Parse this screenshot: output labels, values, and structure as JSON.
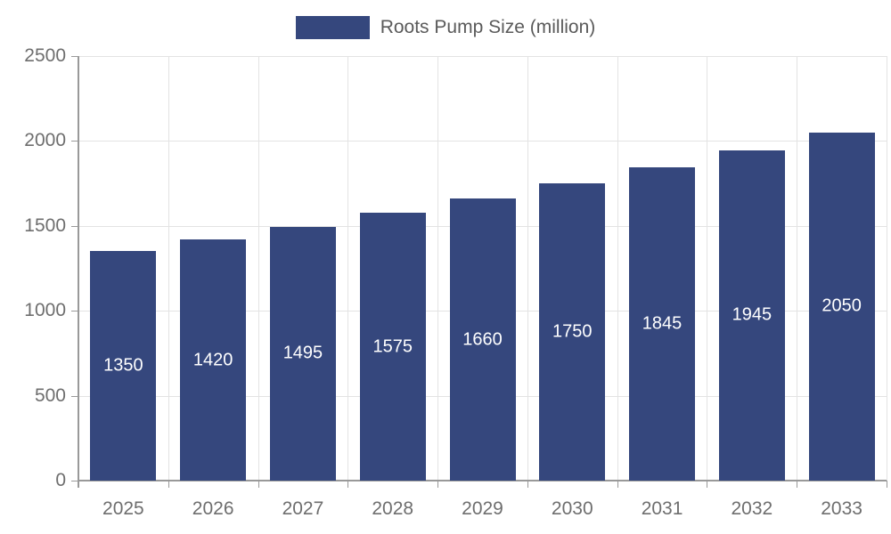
{
  "chart_data": {
    "type": "bar",
    "title": "",
    "legend": {
      "label": "Roots Pump Size (million)",
      "position": "top-center"
    },
    "categories": [
      "2025",
      "2026",
      "2027",
      "2028",
      "2029",
      "2030",
      "2031",
      "2032",
      "2033"
    ],
    "series": [
      {
        "name": "Roots Pump Size (million)",
        "values": [
          1350,
          1420,
          1495,
          1575,
          1660,
          1750,
          1845,
          1945,
          2050
        ]
      }
    ],
    "data_labels": [
      "1350",
      "1420",
      "1495",
      "1575",
      "1660",
      "1750",
      "1845",
      "1945",
      "2050"
    ],
    "xlabel": "",
    "ylabel": "",
    "ylim": [
      0,
      2500
    ],
    "yticks": [
      "0",
      "500",
      "1000",
      "1500",
      "2000",
      "2500"
    ],
    "grid": "on",
    "colors": {
      "bar": "#35477d",
      "value_label": "#ffffff",
      "axis_text": "#6e6e6e",
      "legend_text": "#5a5a5a",
      "grid_line": "#e3e3e3",
      "axis_line": "#999999"
    }
  }
}
